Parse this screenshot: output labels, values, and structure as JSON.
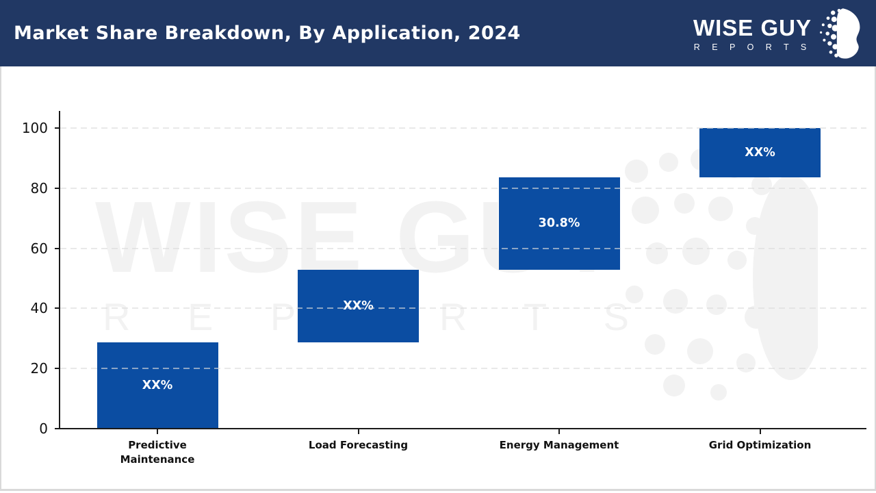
{
  "header": {
    "title": "Market Share Breakdown, By Application, 2024",
    "brand": {
      "name": "WISE GUY",
      "subtitle": "R E P O R T S"
    }
  },
  "watermark": {
    "line1": "WISE GUY",
    "line2": "R E P O R T S"
  },
  "chart_data": {
    "type": "bar",
    "subtype": "waterfall-floating-segments",
    "title": "Market Share Breakdown, By Application, 2024",
    "categories": [
      "Predictive\nMaintenance",
      "Load Forecasting",
      "Energy Management",
      "Grid Optimization"
    ],
    "segments": [
      {
        "category": "Predictive Maintenance",
        "start": 0,
        "end": 28.8,
        "value": 28.8,
        "label": "XX%"
      },
      {
        "category": "Load Forecasting",
        "start": 28.8,
        "end": 52.9,
        "value": 24.1,
        "label": "XX%"
      },
      {
        "category": "Energy Management",
        "start": 52.9,
        "end": 83.7,
        "value": 30.8,
        "label": "30.8%"
      },
      {
        "category": "Grid Optimization",
        "start": 83.7,
        "end": 100.0,
        "value": 16.3,
        "label": "XX%"
      }
    ],
    "y_ticks": [
      0,
      20,
      40,
      60,
      80,
      100
    ],
    "ylim": [
      0,
      104
    ],
    "grid": "horizontal dashed, drawn over bars",
    "legend": "none",
    "xlabel": "",
    "ylabel": ""
  },
  "colors": {
    "header_bg": "#213864",
    "bar": "#0b4da2",
    "bar_label": "#ffffff",
    "grid": "#dbdbdb",
    "axis": "#1a1a1a",
    "watermark": "#f2f2f2",
    "border": "#d9d9d9"
  }
}
